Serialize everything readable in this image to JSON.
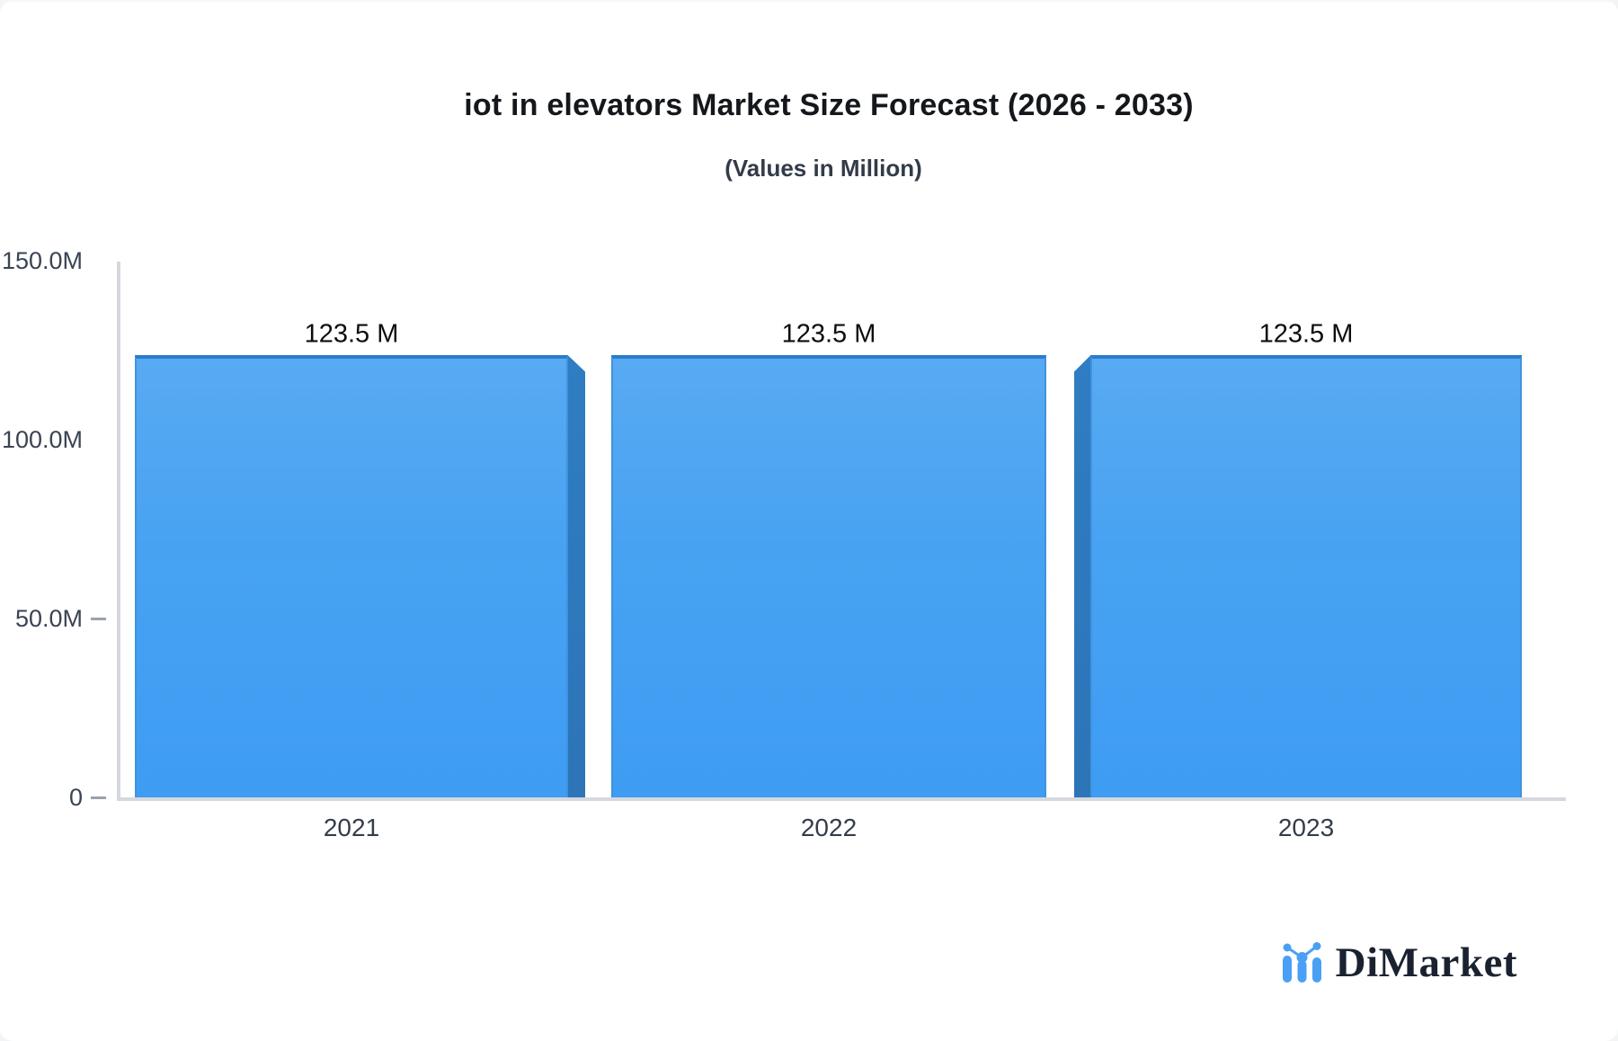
{
  "header": {
    "title": "iot in elevators Market Size Forecast (2026 - 2033)",
    "subtitle": "(Values in Million)"
  },
  "chart_data": {
    "type": "bar",
    "title": "iot in elevators Market Size Forecast (2026 - 2033)",
    "subtitle": "(Values in Million)",
    "unit": "Million",
    "categories": [
      "2021",
      "2022",
      "2023"
    ],
    "values": [
      123.5,
      123.5,
      123.5
    ],
    "value_labels": [
      "123.5 M",
      "123.5 M",
      "123.5 M"
    ],
    "ylim": [
      0,
      150
    ],
    "yticks": [
      {
        "value": 150,
        "label": "150.0M",
        "tick_mark": false
      },
      {
        "value": 100,
        "label": "100.0M",
        "tick_mark": false
      },
      {
        "value": 50,
        "label": "50.0M",
        "tick_mark": true
      },
      {
        "value": 0,
        "label": "0",
        "tick_mark": true
      }
    ],
    "grid": false,
    "legend": false,
    "bar_style": {
      "fill_top": "#58aaf2",
      "fill_bottom": "#3e9cf3",
      "top_edge": "#2b7ccb",
      "side_3d": "#2d78bd"
    }
  },
  "branding": {
    "logo_text": "DiMarket",
    "logo_icon": "bar-line-chart-icon",
    "text_color": "#1a2230",
    "icon_color": "#4aa0f4"
  }
}
